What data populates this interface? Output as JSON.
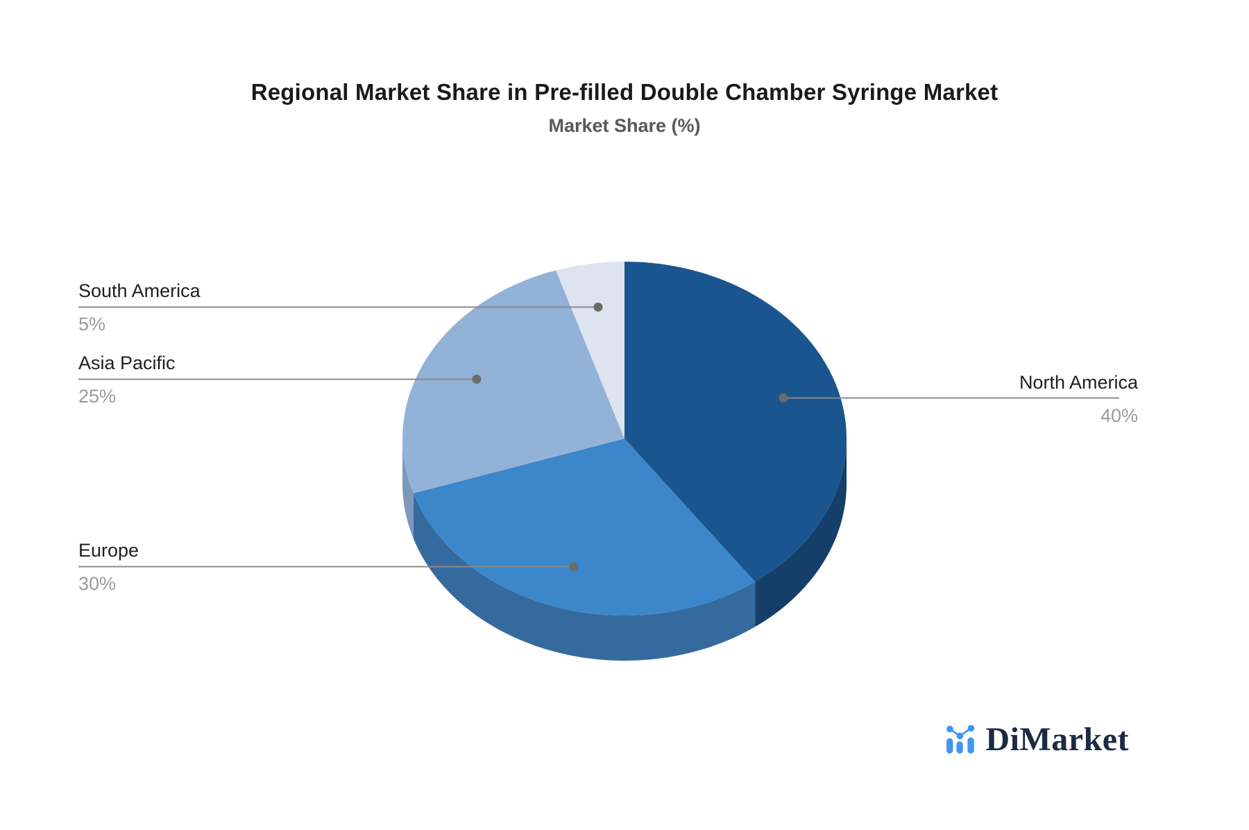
{
  "title": "Regional Market Share in Pre-filled Double Chamber Syringe Market",
  "subtitle": "Market Share (%)",
  "chart_data": {
    "type": "pie",
    "style": "3d",
    "title": "Regional Market Share in Pre-filled Double Chamber Syringe Market",
    "subtitle": "Market Share (%)",
    "unit": "%",
    "start_angle_deg": 0,
    "direction": "clockwise",
    "legend_position": "callout-labels",
    "series": [
      {
        "name": "North America",
        "value": 40,
        "label": "40%",
        "color": "#1a5590",
        "side_color": "#153f68"
      },
      {
        "name": "Europe",
        "value": 30,
        "label": "30%",
        "color": "#3c86ca",
        "side_color": "#356a9e"
      },
      {
        "name": "Asia Pacific",
        "value": 25,
        "label": "25%",
        "color": "#93b2d8",
        "side_color": "#7d98ba"
      },
      {
        "name": "South America",
        "value": 5,
        "label": "5%",
        "color": "#dde4ef",
        "side_color": "#c9d3e2"
      }
    ]
  },
  "styles": {
    "background": "#ffffff",
    "title_color": "#1a1a1a",
    "subtitle_color": "#57585b",
    "label_color": "#1f1f1f",
    "value_color": "#9b9b9b",
    "leader_line_color": "#8a8a8a",
    "dot_color": "#6b6b6b"
  },
  "logo": {
    "text": "DiMarket",
    "icon": "bar-line-chart-icon",
    "icon_color": "#4296f0",
    "text_color": "#1b2a45"
  }
}
